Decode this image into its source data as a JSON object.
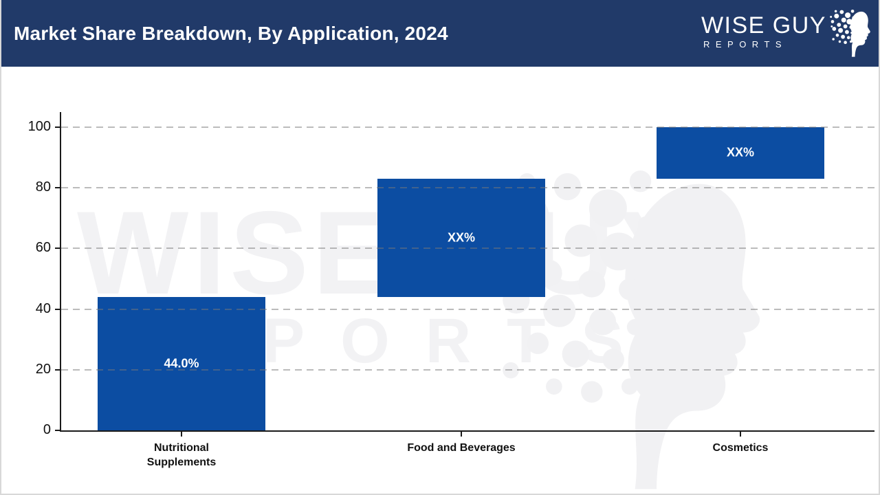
{
  "header": {
    "title": "Market Share Breakdown, By Application, 2024",
    "logo": {
      "line1": "WISE GUY",
      "line2": "REPORTS"
    }
  },
  "watermark": {
    "line1": "WISE GUY",
    "line2": "REPORTS"
  },
  "colors": {
    "header_bg": "#213a69",
    "bar": "#0c4da2",
    "grid": "#9a9a9a",
    "watermark": "#f2f2f4"
  },
  "chart_data": {
    "type": "bar",
    "subtype": "waterfall",
    "title": "Market Share Breakdown, By Application, 2024",
    "categories": [
      "Nutritional\nSupplements",
      "Food and Beverages",
      "Cosmetics"
    ],
    "segments": [
      {
        "category": "Nutritional Supplements",
        "start": 0,
        "end": 44,
        "label": "44.0%"
      },
      {
        "category": "Food and Beverages",
        "start": 44,
        "end": 83,
        "label": "XX%"
      },
      {
        "category": "Cosmetics",
        "start": 83,
        "end": 100,
        "label": "XX%"
      }
    ],
    "increments": [
      44,
      39,
      17
    ],
    "bar_labels": [
      "44.0%",
      "XX%",
      "XX%"
    ],
    "xlabel": "",
    "ylabel": "",
    "ylim": [
      0,
      100
    ],
    "yticks": [
      0,
      20,
      40,
      60,
      80,
      100
    ],
    "grid": {
      "axis": "y",
      "style": "dashed"
    },
    "legend": false,
    "bar_color": "#0c4da2"
  }
}
